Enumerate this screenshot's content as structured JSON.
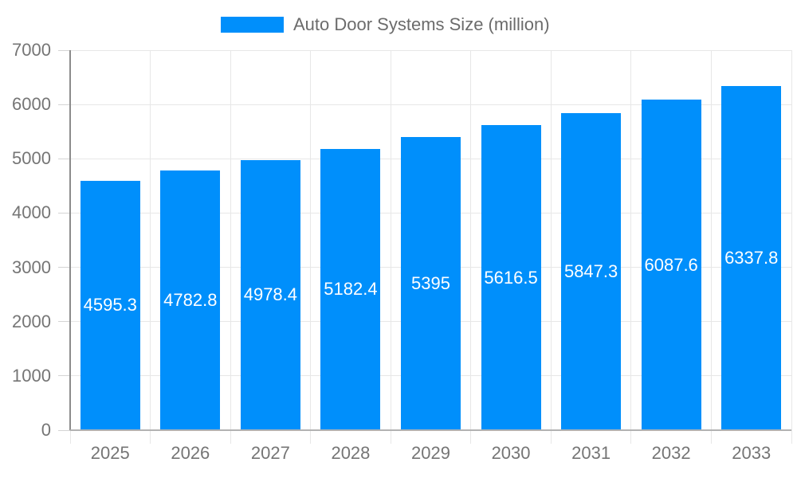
{
  "chart_data": {
    "type": "bar",
    "title": "Auto Door Systems Size (million)",
    "series_name": "Auto Door Systems Size (million)",
    "categories": [
      "2025",
      "2026",
      "2027",
      "2028",
      "2029",
      "2030",
      "2031",
      "2032",
      "2033"
    ],
    "values": [
      4595.3,
      4782.8,
      4978.4,
      5182.4,
      5395,
      5616.5,
      5847.3,
      6087.6,
      6337.8
    ],
    "value_labels": [
      "4595.3",
      "4782.8",
      "4978.4",
      "5182.4",
      "5395",
      "5616.5",
      "5847.3",
      "6087.6",
      "6337.8"
    ],
    "xlabel": "",
    "ylabel": "",
    "ylim": [
      0,
      7000
    ],
    "y_ticks": [
      0,
      1000,
      2000,
      3000,
      4000,
      5000,
      6000,
      7000
    ],
    "grid": true,
    "legend_position": "top-center",
    "colors": {
      "bar": "#008FFB",
      "grid_line": "#e7e7e7",
      "axis_line_y": "#8c8c8c",
      "axis_line_x": "#b2b2b2",
      "tick": "#d4d4d4",
      "axis_label": "#757575",
      "title_text": "#6b6b6b",
      "data_label": "#ffffff",
      "background": "#ffffff"
    }
  }
}
